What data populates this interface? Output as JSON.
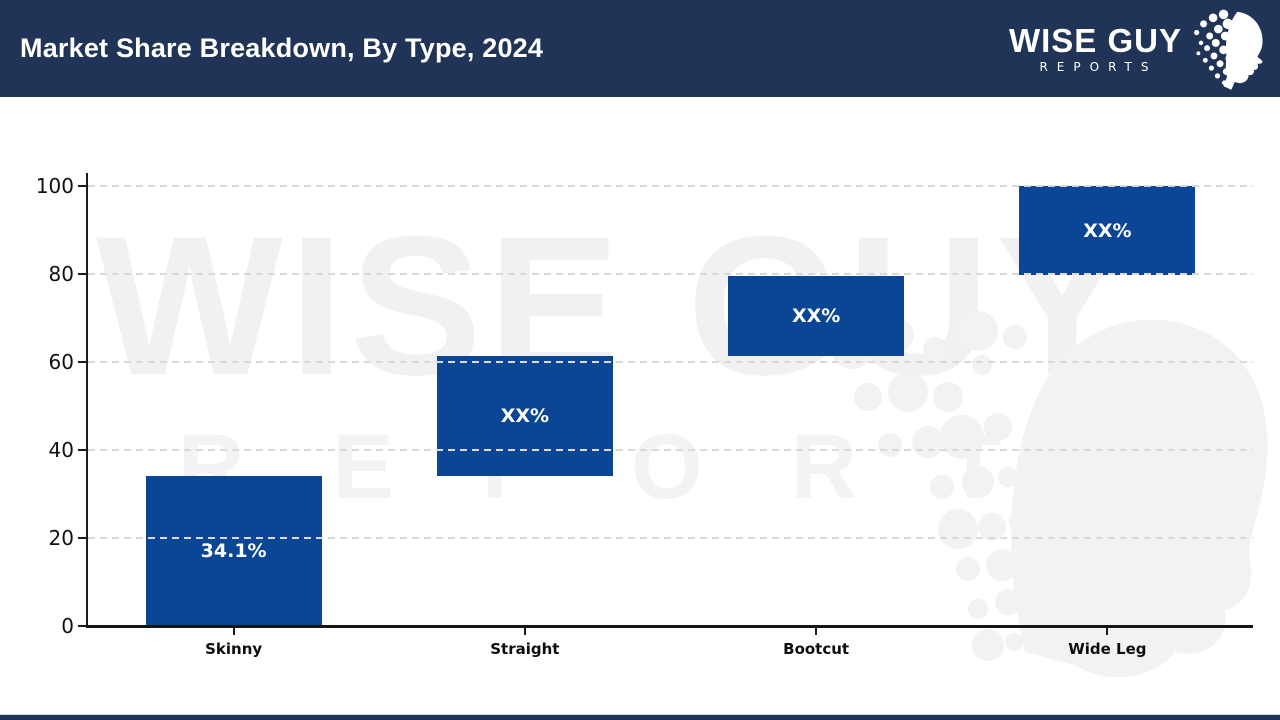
{
  "header": {
    "title": "Market Share Breakdown, By Type, 2024",
    "logo": {
      "name": "WISE GUY",
      "sub": "REPORTS"
    }
  },
  "watermark": {
    "line1": "WISE GUY",
    "line2": "REPORTS"
  },
  "chart_data": {
    "type": "bar",
    "subtype": "waterfall",
    "title": "Market Share Breakdown, By Type, 2024",
    "xlabel": "",
    "ylabel": "",
    "categories": [
      "Skinny",
      "Straight",
      "Bootcut",
      "Wide Leg"
    ],
    "segments": [
      {
        "category": "Skinny",
        "start": 0,
        "end": 34.1,
        "label": "34.1%"
      },
      {
        "category": "Straight",
        "start": 34.1,
        "end": 61.4,
        "label": "XX%"
      },
      {
        "category": "Bootcut",
        "start": 61.4,
        "end": 79.6,
        "label": "XX%"
      },
      {
        "category": "Wide Leg",
        "start": 79.8,
        "end": 100,
        "label": "XX%"
      }
    ],
    "ylim": [
      0,
      103
    ],
    "yticks": [
      0,
      20,
      40,
      60,
      80,
      100
    ],
    "grid": "horizontal-dashed",
    "legend": "none"
  },
  "colors": {
    "header_bg": "#203457",
    "bar": "#0a4596",
    "grid": "#d9d9d9",
    "axis": "#1c1c1c",
    "bar_label": "#ffffff",
    "watermark": "#f1f1f4"
  }
}
